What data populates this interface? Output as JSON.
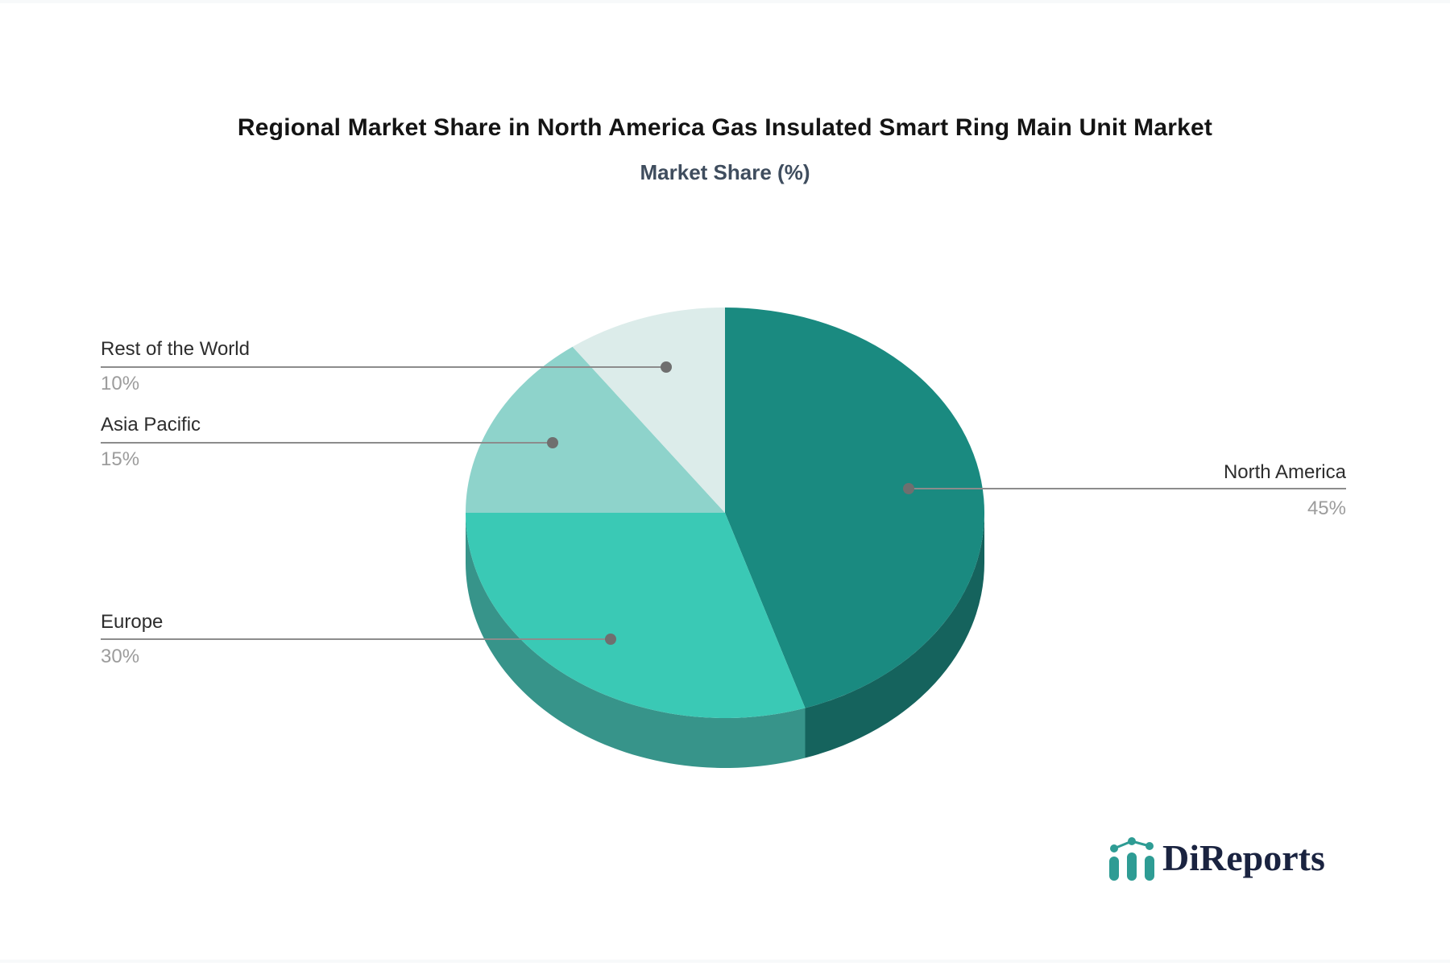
{
  "header": {
    "title": "Regional Market Share in North America Gas Insulated Smart Ring Main Unit Market",
    "subtitle": "Market Share (%)"
  },
  "chart_data": {
    "type": "pie",
    "style": "3d",
    "title": "Regional Market Share in North America Gas Insulated Smart Ring Main Unit Market",
    "subtitle": "Market Share (%)",
    "unit": "%",
    "start_angle": "top",
    "direction": "clockwise",
    "legend_position": "callout-labels",
    "slices": [
      {
        "label": "North America",
        "value": 45,
        "pct_label": "45%",
        "color": "#1a8a80",
        "side_color": "#15635d"
      },
      {
        "label": "Europe",
        "value": 30,
        "pct_label": "30%",
        "color": "#3ac9b5",
        "side_color": "#37948a"
      },
      {
        "label": "Asia Pacific",
        "value": 15,
        "pct_label": "15%",
        "color": "#8ed3cb",
        "side_color": "#6aaba3"
      },
      {
        "label": "Rest of the World",
        "value": 10,
        "pct_label": "10%",
        "color": "#dcecea",
        "side_color": "#b2c8c5"
      }
    ]
  },
  "callout_colors": {
    "line": "#8c8c8c",
    "dot": "#6f6f6f",
    "name_text": "#2d2d2d",
    "pct_text": "#9c9c9c"
  },
  "logo": {
    "text": "DiReports",
    "icon": "bar-line-chart-icon",
    "icon_color": "#2e9c94",
    "text_color": "#1a2340"
  }
}
